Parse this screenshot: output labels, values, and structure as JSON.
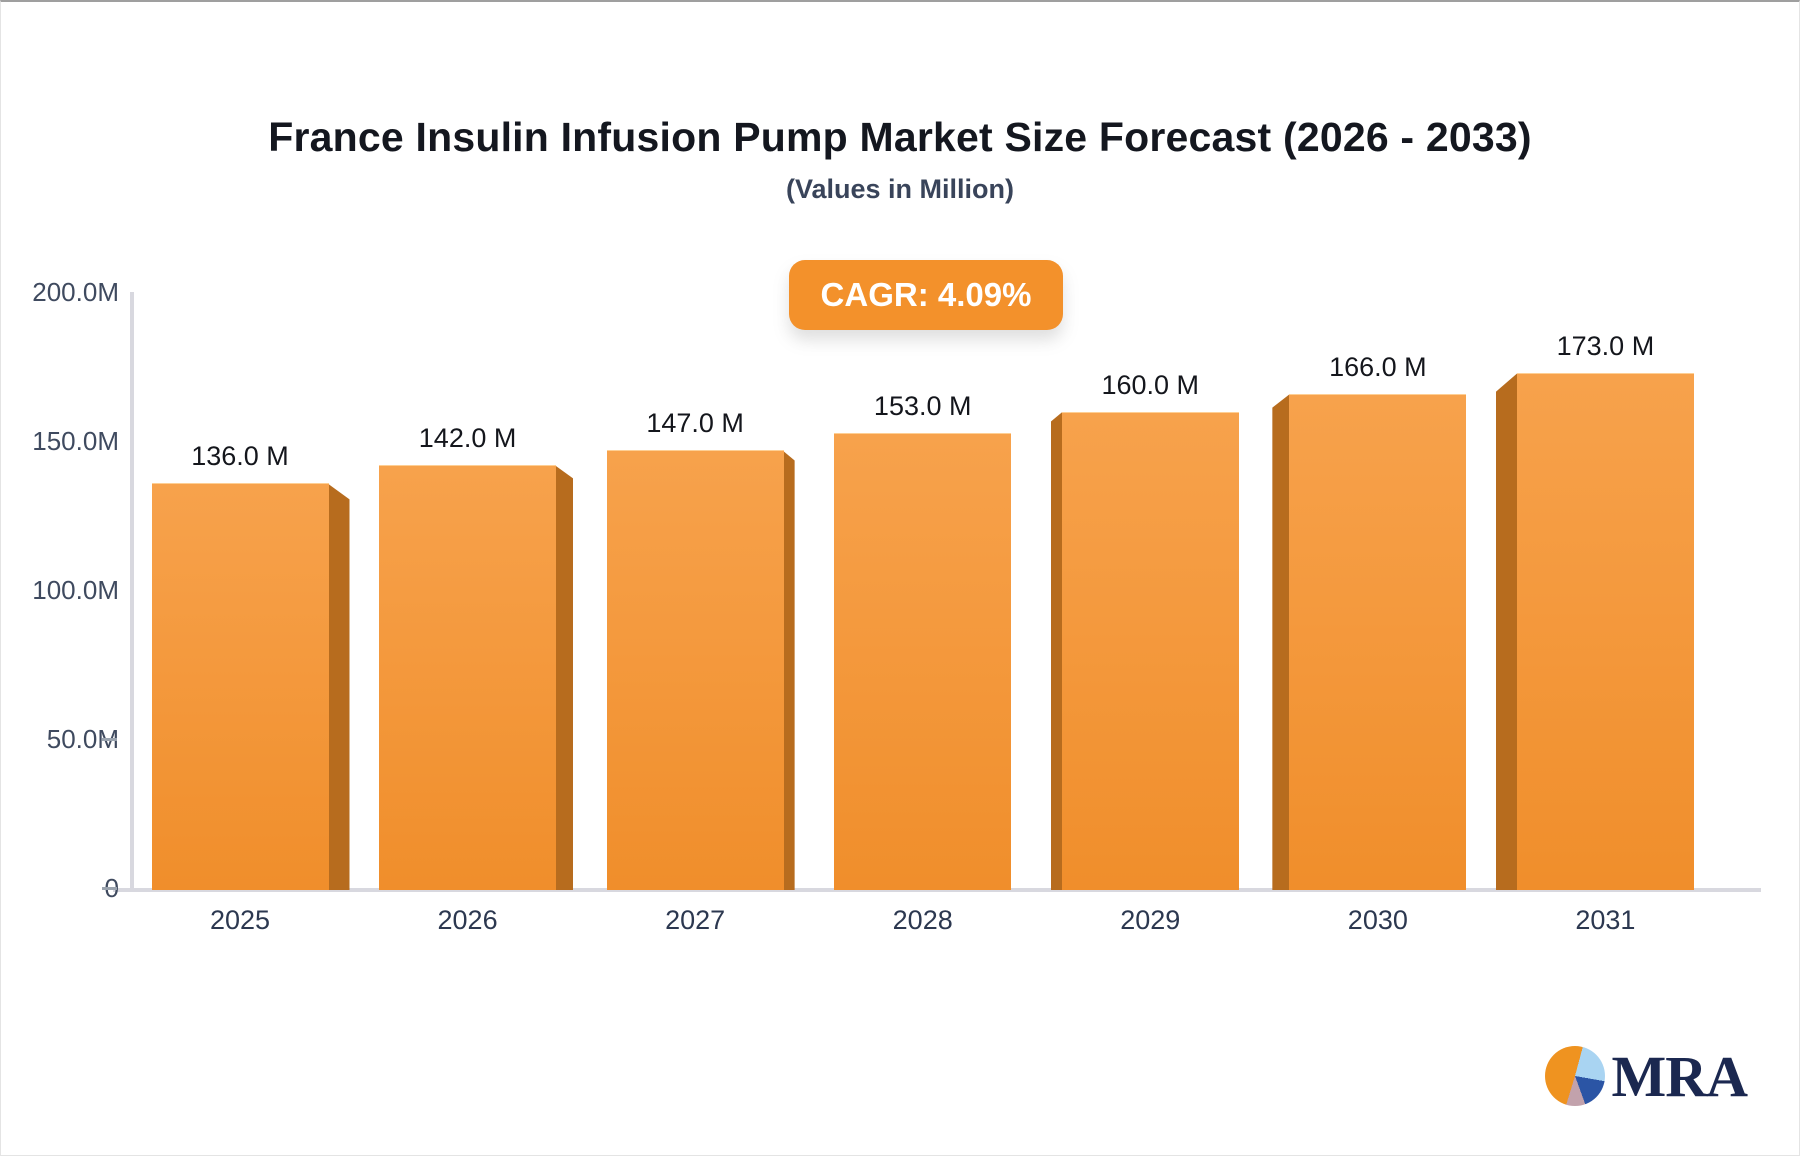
{
  "header": {
    "title": "France Insulin Infusion Pump Market Size Forecast (2026 - 2033)",
    "subtitle": "(Values in Million)"
  },
  "badge": {
    "text": "CAGR: 4.09%",
    "bg_color": "#F3912B",
    "text_color": "#FFFFFF"
  },
  "chart_data": {
    "type": "bar",
    "title": "France Insulin Infusion Pump Market Size Forecast (2026 - 2033)",
    "subtitle": "(Values in Million)",
    "categories": [
      "2025",
      "2026",
      "2027",
      "2028",
      "2029",
      "2030",
      "2031"
    ],
    "values": [
      136,
      142,
      147,
      153,
      160,
      166,
      173
    ],
    "value_labels": [
      "136.0 M",
      "142.0 M",
      "147.0 M",
      "153.0 M",
      "160.0 M",
      "166.0 M",
      "173.0 M"
    ],
    "xlabel": "",
    "ylabel": "",
    "ylim": [
      0,
      200
    ],
    "yticks": [
      {
        "value": 200,
        "label": "200.0M",
        "tick": false
      },
      {
        "value": 150,
        "label": "150.0M",
        "tick": false
      },
      {
        "value": 100,
        "label": "100.0M",
        "tick": false
      },
      {
        "value": 50,
        "label": "50.0M",
        "tick": true
      },
      {
        "value": 0,
        "label": "0",
        "tick": true
      }
    ],
    "grid": false,
    "legend": null,
    "bar_face_top_color": "#F7A24C",
    "bar_face_bottom_color": "#F08E2B",
    "bar_side_color": "#B76C1E",
    "axis_line_color": "#D8D8DF",
    "value_label_color": "#14161C",
    "category_label_color": "#2C3850",
    "ytick_label_color": "#3F4A5F"
  },
  "logo": {
    "text": "MRA",
    "text_color": "#1B2850",
    "pie_colors": {
      "orange": "#EF9320",
      "light_blue": "#A9D4F2",
      "dark_blue": "#2B55A5",
      "mauve": "#C2A2AC"
    }
  }
}
